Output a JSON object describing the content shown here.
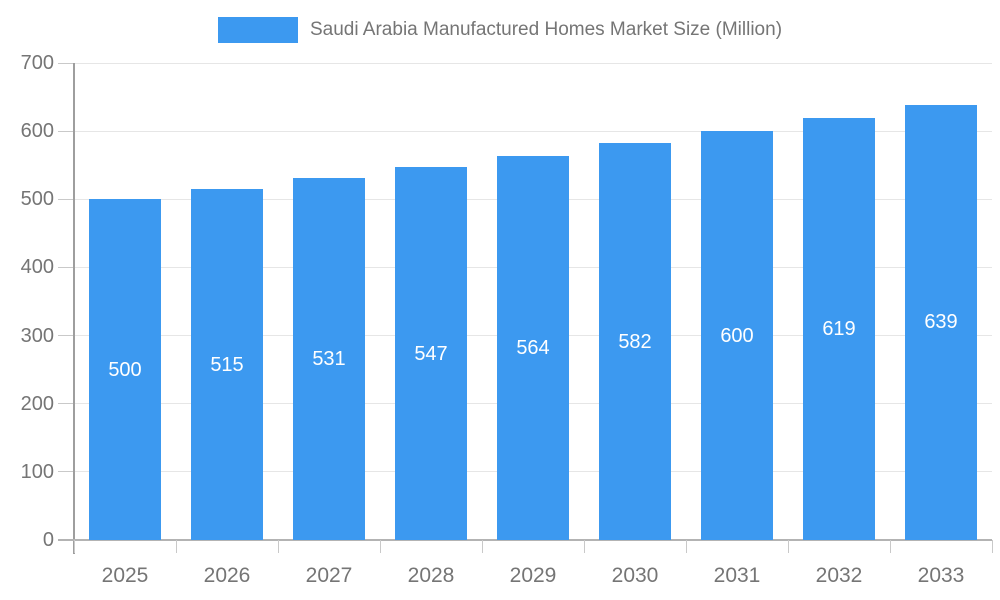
{
  "chart_data": {
    "type": "bar",
    "title": "Saudi Arabia Manufactured Homes Market Size (Million)",
    "categories": [
      "2025",
      "2026",
      "2027",
      "2028",
      "2029",
      "2030",
      "2031",
      "2032",
      "2033"
    ],
    "values": [
      500,
      515,
      531,
      547,
      564,
      582,
      600,
      619,
      639
    ],
    "xlabel": "",
    "ylabel": "",
    "ylim": [
      0,
      700
    ],
    "ytick_step": 100,
    "ytick_labels": [
      "0",
      "100",
      "200",
      "300",
      "400",
      "500",
      "600",
      "700"
    ],
    "grid": true,
    "legend_position": "top",
    "bar_labels_inside": true,
    "colors": {
      "bar": "#3c99f0",
      "bar_label": "#ffffff",
      "axis_text": "#757575",
      "grid_line": "#e6e6e6",
      "y_axis_line": "#9e9e9e",
      "x_axis_line": "#b3b3b3",
      "tick": "#c9c9c9"
    }
  }
}
